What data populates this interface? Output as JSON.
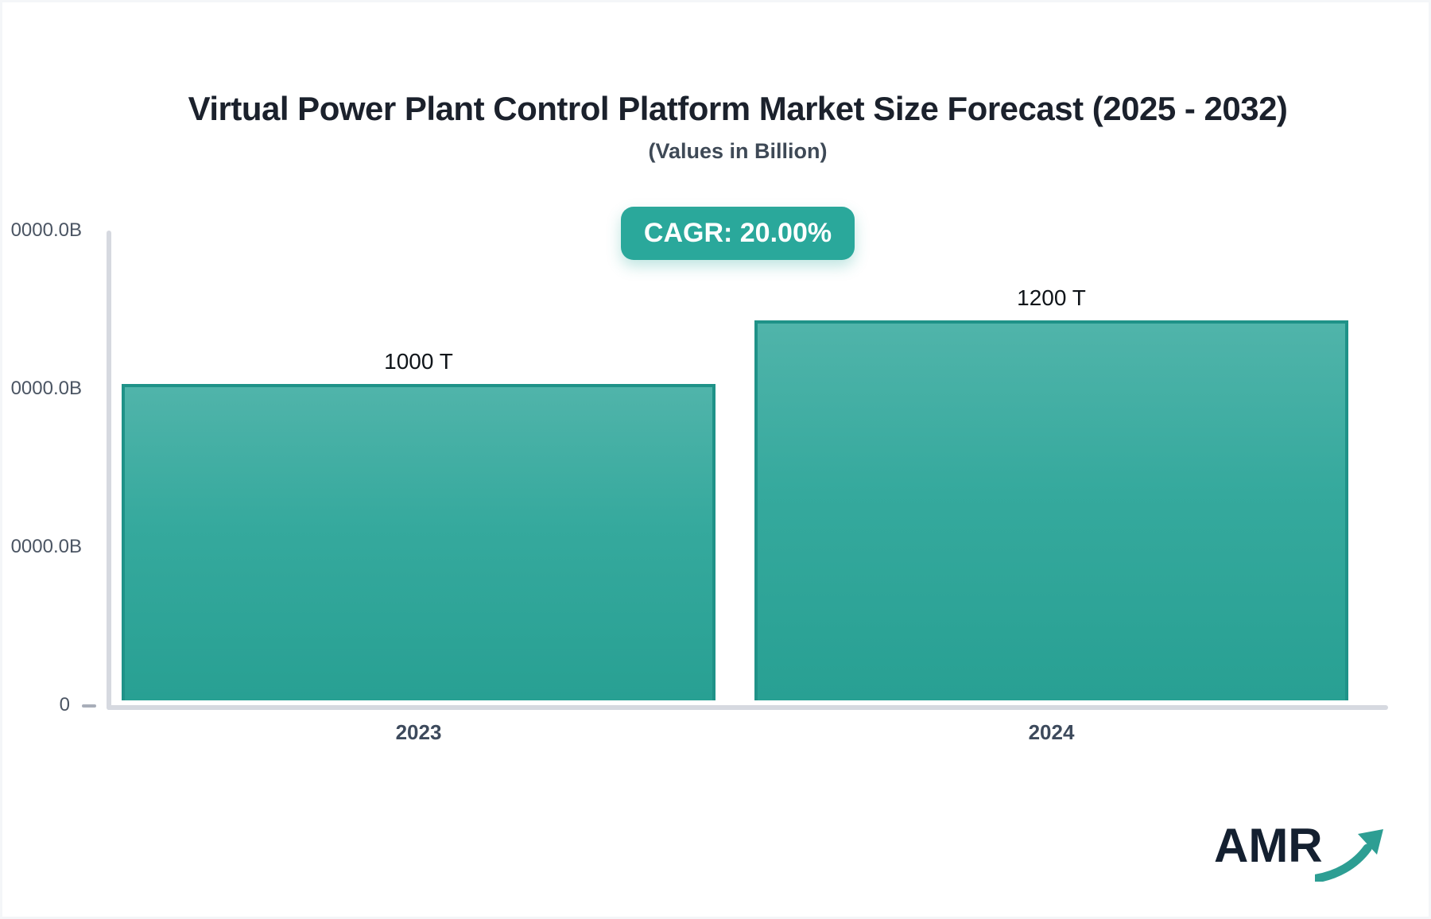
{
  "header": {
    "title": "Virtual Power Plant Control Platform Market Size Forecast (2025 - 2032)",
    "subtitle": "(Values in Billion)",
    "cagr_badge": "CAGR: 20.00%"
  },
  "chart_data": {
    "type": "bar",
    "title": "Virtual Power Plant Control Platform Market Size Forecast (2025 - 2032)",
    "subtitle": "(Values in Billion)",
    "cagr_percent": 20.0,
    "categories": [
      "2023",
      "2024"
    ],
    "values": [
      1000,
      1200
    ],
    "bar_labels": [
      "1000 T",
      "1200 T"
    ],
    "xlabel": "",
    "ylabel": "Values in Billion",
    "ylim": [
      0,
      1500
    ],
    "y_tick_labels_top_to_bottom": [
      "0000.0B",
      "0000.0B",
      "0000.0B",
      "0"
    ],
    "grid": false,
    "legend": false
  },
  "colors": {
    "accent_teal": "#2aa89b",
    "bar_gradient_top": "#50b4aa",
    "bar_gradient_bottom": "#28a093",
    "bar_border": "#1f9288",
    "title_text": "#1b212c",
    "subtitle_text": "#3e4956",
    "axis_label": "#4b5563",
    "x_label": "#3d4a5c",
    "axis_line": "#d6d9e0",
    "tick_dash": "#a8aeb9",
    "logo_text": "#142030",
    "logo_arrow": "#2d9e93"
  },
  "logo": {
    "text": "AMR"
  }
}
